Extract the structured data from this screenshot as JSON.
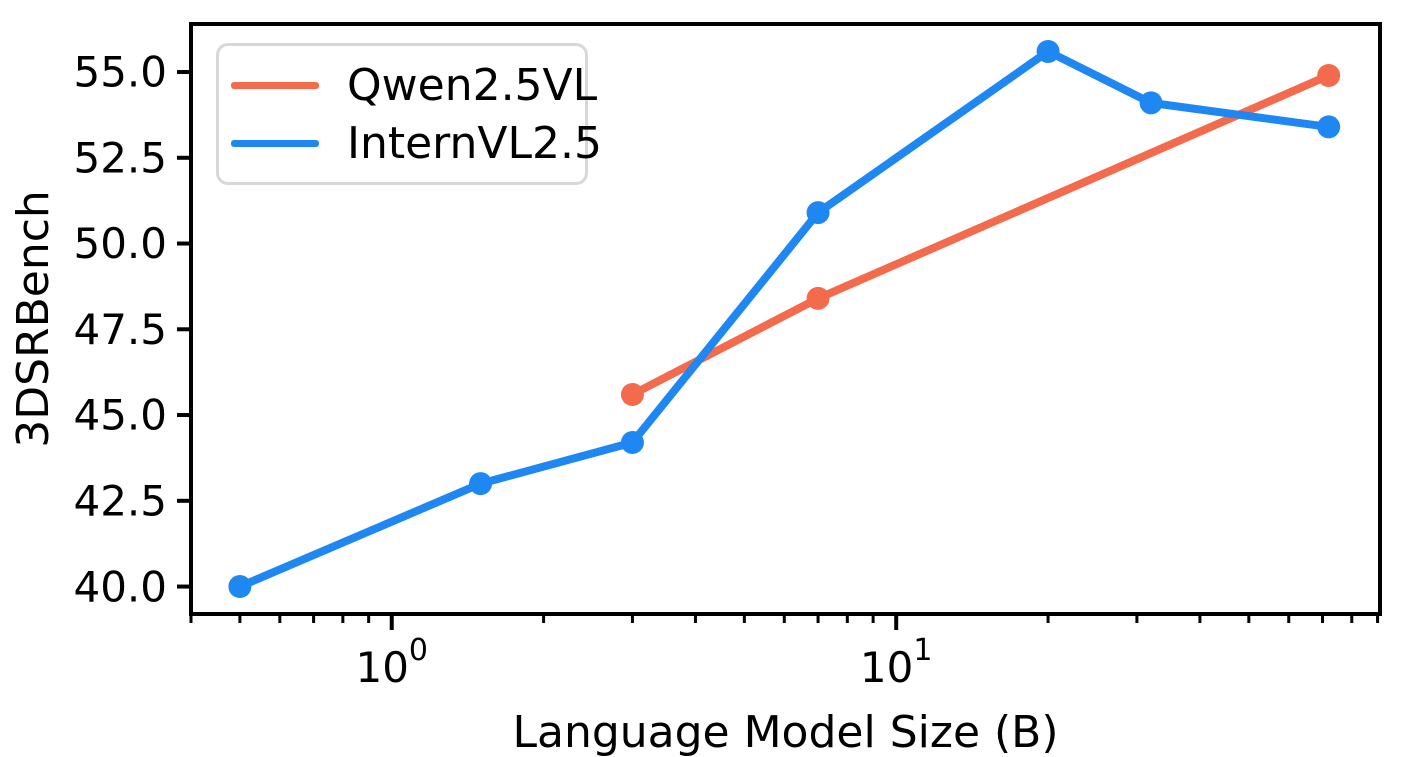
{
  "figure": {
    "background": "#ffffff"
  },
  "chart_data": {
    "type": "line",
    "title": "",
    "xlabel": "Language Model Size (B)",
    "ylabel": "3DSRBench",
    "x_scale": "log",
    "grid": false,
    "xlim": [
      0.4,
      91
    ],
    "ylim": [
      39.2,
      56.4
    ],
    "yticks": [
      40.0,
      42.5,
      45.0,
      47.5,
      50.0,
      52.5,
      55.0
    ],
    "ytick_labels": [
      "40.0",
      "42.5",
      "45.0",
      "47.5",
      "50.0",
      "52.5",
      "55.0"
    ],
    "xticks_major": [
      {
        "value": 1,
        "base": "10",
        "exp": "0"
      },
      {
        "value": 10,
        "base": "10",
        "exp": "1"
      }
    ],
    "xticks_minor": [
      0.4,
      0.5,
      0.6,
      0.7,
      0.8,
      0.9,
      2,
      3,
      4,
      5,
      6,
      7,
      8,
      9,
      20,
      30,
      40,
      50,
      60,
      70,
      80,
      90
    ],
    "legend": {
      "position": "upper left",
      "entries": [
        "Qwen2.5VL",
        "InternVL2.5"
      ]
    },
    "series": [
      {
        "name": "Qwen2.5VL",
        "color": "#F46A4D",
        "x": [
          3,
          7,
          72
        ],
        "y": [
          45.6,
          48.4,
          54.9
        ]
      },
      {
        "name": "InternVL2.5",
        "color": "#1E87F2",
        "x": [
          0.5,
          1.5,
          3,
          7,
          20,
          32,
          72
        ],
        "y": [
          40.0,
          43.0,
          44.2,
          50.9,
          55.6,
          54.1,
          53.4
        ]
      }
    ]
  }
}
